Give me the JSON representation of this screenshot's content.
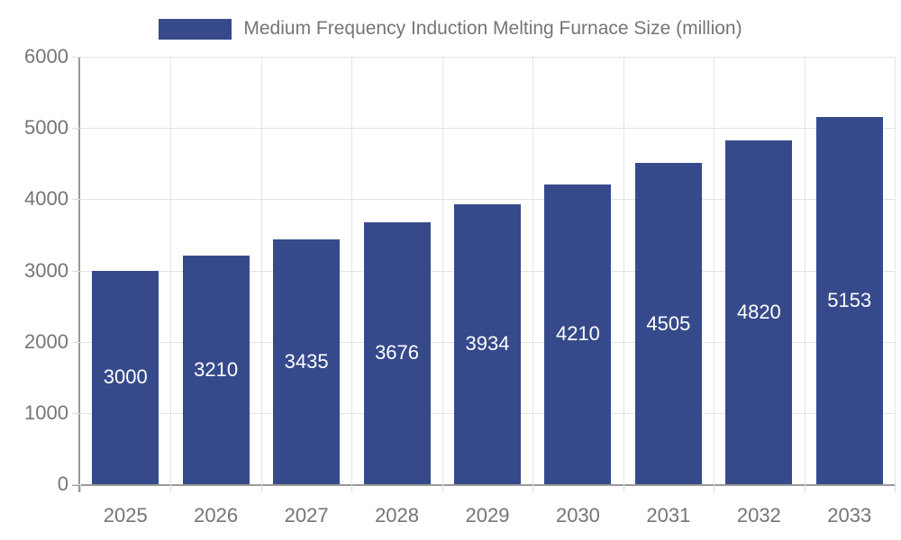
{
  "legend": {
    "label": "Medium Frequency Induction Melting Furnace Size (million)"
  },
  "chart_data": {
    "type": "bar",
    "title": "Medium Frequency Induction Melting Furnace Size (million)",
    "categories": [
      "2025",
      "2026",
      "2027",
      "2028",
      "2029",
      "2030",
      "2031",
      "2032",
      "2033"
    ],
    "values": [
      3000,
      3210,
      3435,
      3676,
      3934,
      4210,
      4505,
      4820,
      5153
    ],
    "xlabel": "",
    "ylabel": "",
    "ylim": [
      0,
      6000
    ],
    "yticks": [
      0,
      1000,
      2000,
      3000,
      4000,
      5000,
      6000
    ],
    "grid": true,
    "legend_position": "top",
    "value_labels": "inside-center-white",
    "colors": {
      "bar": "#364A8B",
      "grid": "#E3E3E3",
      "axis": "#999999",
      "tick": "#DCDCDC",
      "text": "#757575",
      "value_text": "#FFFFFF",
      "background": "#FFFFFF"
    }
  }
}
